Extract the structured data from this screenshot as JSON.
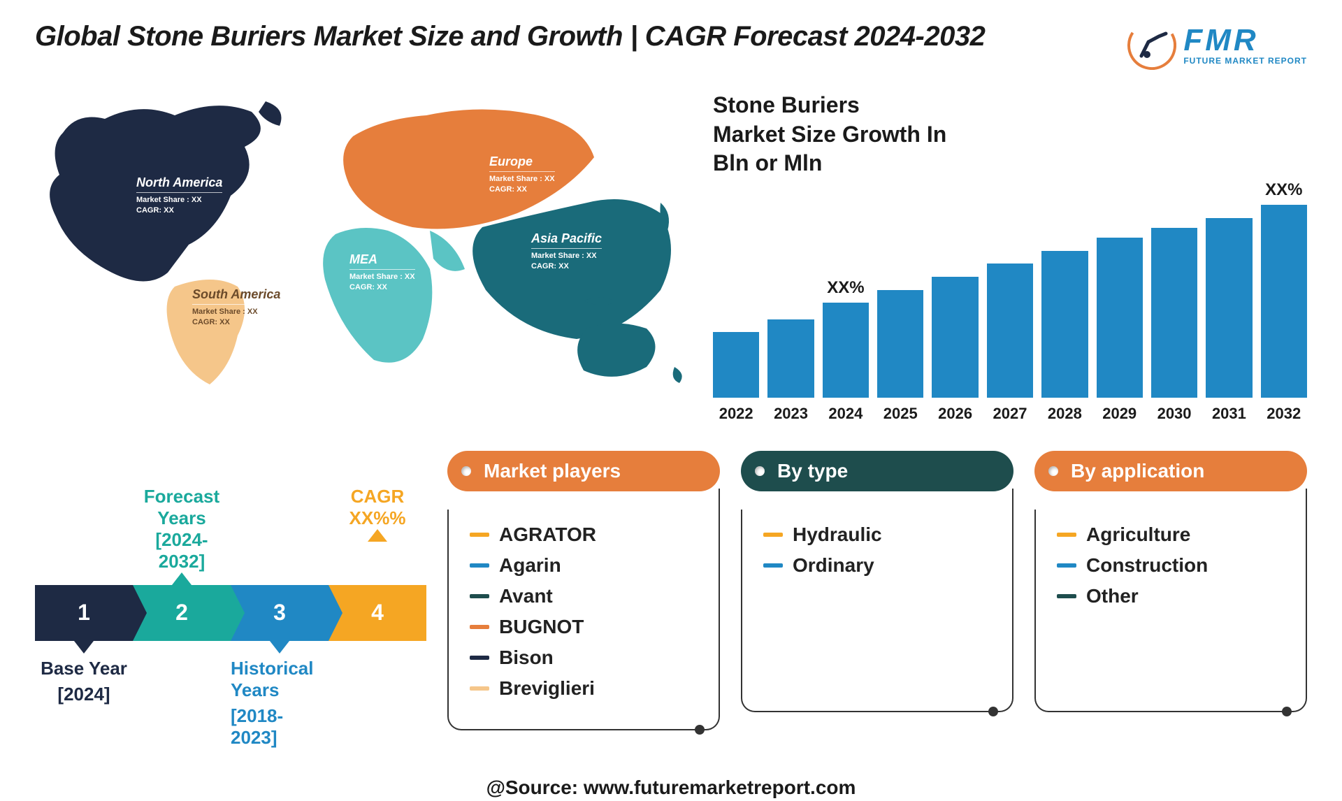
{
  "title": "Global Stone Buriers Market Size and Growth | CAGR Forecast 2024-2032",
  "logo": {
    "fmr": "FMR",
    "sub": "FUTURE MARKET REPORT"
  },
  "colors": {
    "navy": "#1e2a44",
    "teal": "#1aa99c",
    "blue": "#2088c4",
    "orange": "#f5a623",
    "pill_orange": "#e67e3c",
    "pill_teal": "#1e4d4d",
    "map_na": "#1e2a44",
    "map_sa": "#f5c68a",
    "map_mea": "#5bc4c4",
    "map_eu": "#e67e3c",
    "map_ap": "#1a6b7a",
    "bar": "#2088c4",
    "background": "#ffffff"
  },
  "map": {
    "regions": [
      {
        "key": "na",
        "name": "North America",
        "share": "Market Share : XX",
        "cagr": "CAGR: XX"
      },
      {
        "key": "sa",
        "name": "South America",
        "share": "Market Share : XX",
        "cagr": "CAGR: XX"
      },
      {
        "key": "mea",
        "name": "MEA",
        "share": "Market Share : XX",
        "cagr": "CAGR: XX"
      },
      {
        "key": "eu",
        "name": "Europe",
        "share": "Market Share : XX",
        "cagr": "CAGR: XX"
      },
      {
        "key": "ap",
        "name": "Asia Pacific",
        "share": "Market Share : XX",
        "cagr": "CAGR: XX"
      }
    ]
  },
  "bar_chart": {
    "type": "bar",
    "title_l1": "Stone Buriers",
    "title_l2": "Market Size Growth In",
    "title_l3": "Bln or Mln",
    "years": [
      "2022",
      "2023",
      "2024",
      "2025",
      "2026",
      "2027",
      "2028",
      "2029",
      "2030",
      "2031",
      "2032"
    ],
    "values": [
      100,
      120,
      145,
      165,
      185,
      205,
      225,
      245,
      260,
      275,
      295
    ],
    "bar_color": "#2088c4",
    "ylim": [
      0,
      300
    ],
    "label_fontsize": 22,
    "annotations": {
      "2": "XX%",
      "10": "XX%"
    }
  },
  "timeline": {
    "forecast_label": "Forecast Years",
    "forecast_range": "[2024-2032]",
    "cagr_label": "CAGR",
    "cagr_value": "XX%%",
    "base_label": "Base Year",
    "base_range": "[2024]",
    "hist_label": "Historical Years",
    "hist_range": "[2018-2023]",
    "segments": [
      "1",
      "2",
      "3",
      "4"
    ]
  },
  "cards": {
    "players": {
      "title": "Market players",
      "items": [
        {
          "label": "AGRATOR",
          "color": "#f5a623"
        },
        {
          "label": "Agarin",
          "color": "#2088c4"
        },
        {
          "label": "Avant",
          "color": "#1e4d4d"
        },
        {
          "label": "BUGNOT",
          "color": "#e67e3c"
        },
        {
          "label": "Bison",
          "color": "#1e2a44"
        },
        {
          "label": "Breviglieri",
          "color": "#f5c68a"
        }
      ]
    },
    "type": {
      "title": "By type",
      "items": [
        {
          "label": "Hydraulic",
          "color": "#f5a623"
        },
        {
          "label": "Ordinary",
          "color": "#2088c4"
        }
      ]
    },
    "application": {
      "title": "By application",
      "items": [
        {
          "label": "Agriculture",
          "color": "#f5a623"
        },
        {
          "label": "Construction",
          "color": "#2088c4"
        },
        {
          "label": "Other",
          "color": "#1e4d4d"
        }
      ]
    }
  },
  "source": "@Source: www.futuremarketreport.com"
}
